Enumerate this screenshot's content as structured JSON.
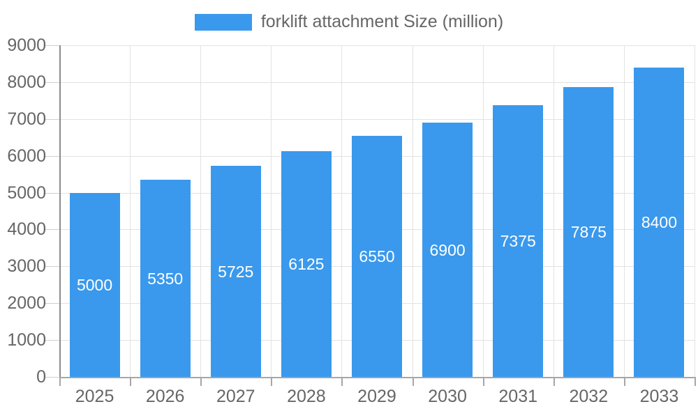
{
  "legend": {
    "label": "forklift attachment Size (million)"
  },
  "chart_data": {
    "type": "bar",
    "title": "forklift attachment Size (million)",
    "categories": [
      "2025",
      "2026",
      "2027",
      "2028",
      "2029",
      "2030",
      "2031",
      "2032",
      "2033"
    ],
    "values": [
      5000,
      5350,
      5725,
      6125,
      6550,
      6900,
      7375,
      7875,
      8400
    ],
    "xlabel": "",
    "ylabel": "",
    "ylim": [
      0,
      9000
    ],
    "ytick_step": 1000,
    "yticks": [
      0,
      1000,
      2000,
      3000,
      4000,
      5000,
      6000,
      7000,
      8000,
      9000
    ],
    "grid": "horizontal and vertical gridlines on",
    "legend_position": "top-center",
    "bar_labels": "values shown in white, centered inside bars",
    "bar_color": "#3a99ec",
    "bar_label_color": "#ffffff",
    "axis_label_color": "#666666",
    "gridline_color": "#e2e2e2",
    "y_axis_line_color": "#8c8c8c",
    "x_axis_line_color": "#a6a6a6"
  }
}
